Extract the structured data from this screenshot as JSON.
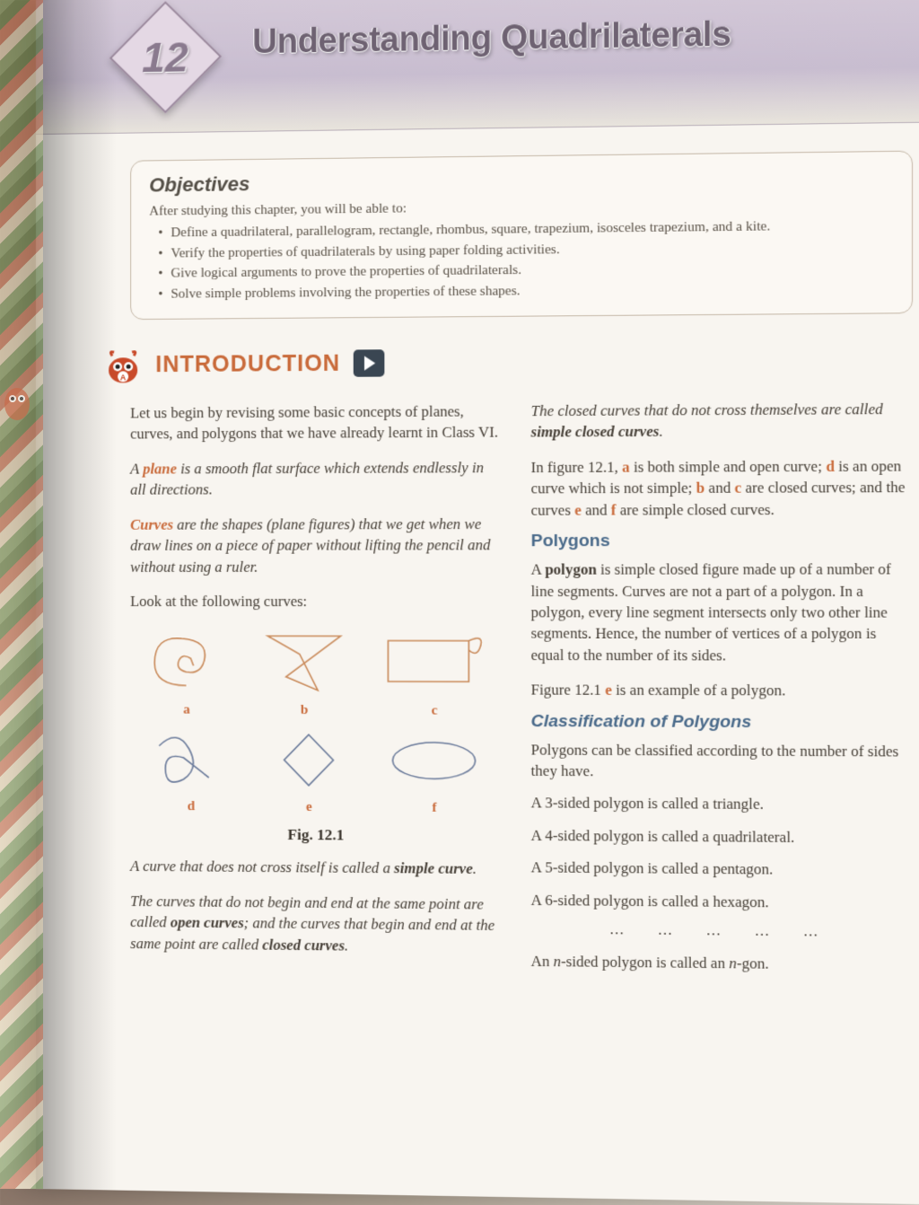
{
  "chapter": {
    "number": "12",
    "title_line1": "Understanding",
    "title_line2": "Quadrilaterals"
  },
  "objectives": {
    "heading": "Objectives",
    "intro": "After studying this chapter, you will be able to:",
    "items": [
      "Define a quadrilateral, parallelogram, rectangle, rhombus, square, trapezium, isosceles trapezium, and a kite.",
      "Verify the properties of quadrilaterals by using paper folding activities.",
      "Give logical arguments to prove the properties of quadrilaterals.",
      "Solve simple problems involving the properties of these shapes."
    ]
  },
  "section": {
    "heading": "INTRODUCTION"
  },
  "left_column": {
    "p1_prefix": "Let us begin by revising some basic concepts of planes, curves, and polygons that we have already learnt in Class VI.",
    "p2_html": "A <span class='keyword'>plane</span> is a smooth flat surface which extends endlessly in all directions.",
    "p3_html": "<span class='keyword'>Curves</span> are the shapes (plane figures) that we get when we draw lines on a piece of paper without lifting the pencil and without using a ruler.",
    "p4": "Look at the following curves:",
    "figure": {
      "labels": [
        "a",
        "b",
        "c",
        "d",
        "e",
        "f"
      ],
      "caption": "Fig. 12.1",
      "stroke_top": "#c98a5a",
      "stroke_bottom": "#6a7a9a"
    },
    "p5_html": "A curve that does not cross itself is called a <span class='bold'>simple curve</span>.",
    "p6_html": "The curves that do not begin and end at the same point are called <span class='bold'>open curves</span>; and the curves that begin and end at the same point are called <span class='bold'>closed curves</span>."
  },
  "right_column": {
    "p1_html": "The closed curves that do not cross themselves are called <span class='bold'>simple closed curves</span>.",
    "p2_html": "In figure 12.1, <span class='ref'>a</span> is both simple and open curve; <span class='ref'>d</span> is an open curve which is not simple; <span class='ref'>b</span> and <span class='ref'>c</span> are closed curves; and the curves <span class='ref'>e</span> and <span class='ref'>f</span> are simple closed curves.",
    "h_polygons": "Polygons",
    "p3_html": "A <span class='bold'>polygon</span> is simple closed figure made up of a number of line segments. Curves are not a part of a polygon. In a polygon, every line segment intersects only two other line segments. Hence, the number of vertices of a polygon is equal to the number of its sides.",
    "p4_html": "Figure 12.1 <span class='ref'>e</span> is an example of a polygon.",
    "h_classification": "Classification of Polygons",
    "p5": "Polygons can be classified according to the number of sides they have.",
    "p6": "A 3-sided polygon is called a triangle.",
    "p7": "A 4-sided polygon is called a quadrilateral.",
    "p8": "A 5-sided polygon is called a pentagon.",
    "p9": "A 6-sided polygon is called a hexagon.",
    "ellipsis": "…   …   …   …   …",
    "p10_html": "An <i>n</i>-sided polygon is called an <i>n</i>-gon."
  },
  "colors": {
    "header_band": "#c8bdd0",
    "accent_orange": "#c96a3a",
    "subheading_blue": "#4a6a8a",
    "body_text": "#474038",
    "page_bg": "#f8f5f0",
    "objectives_border": "#c5b8a8"
  },
  "typography": {
    "body_size_pt": 12,
    "heading_size_pt": 28,
    "subheading_size_pt": 14
  }
}
